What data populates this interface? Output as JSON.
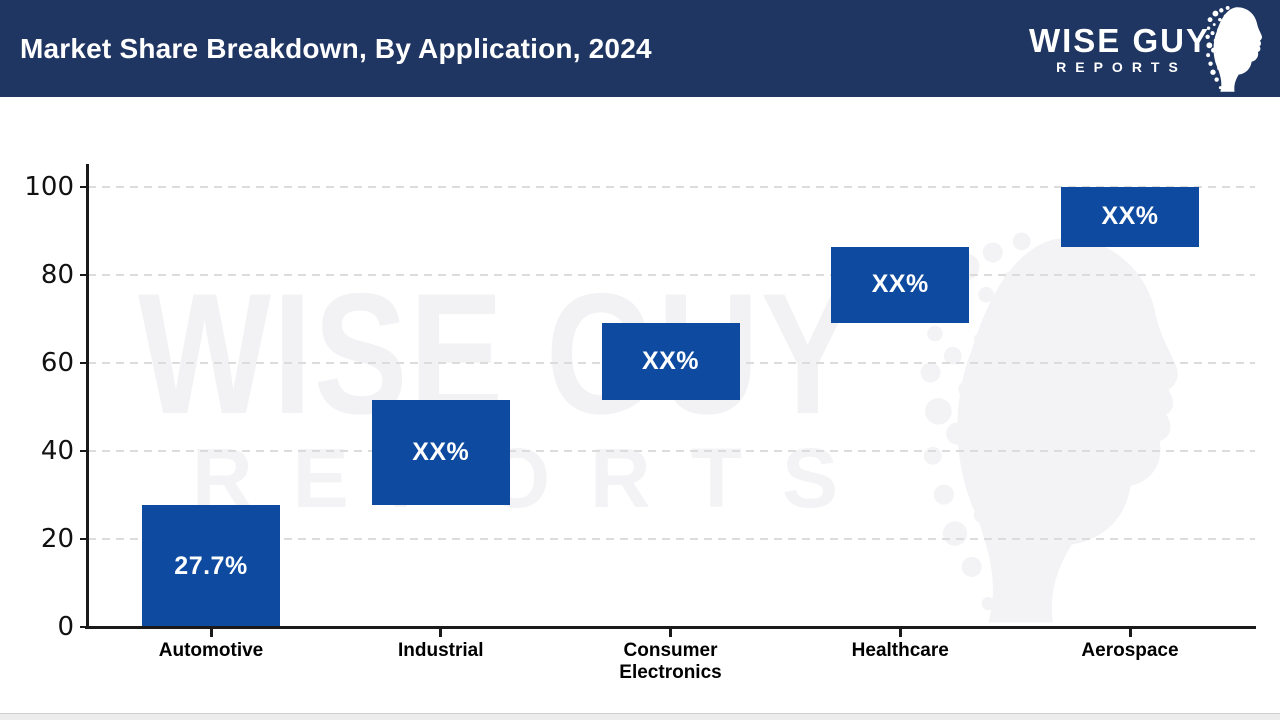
{
  "header": {
    "title": "Market Share Breakdown, By Application, 2024",
    "bg_color": "#1f3562",
    "logo": {
      "line1": "WISE GUY",
      "line2": "REPORTS"
    }
  },
  "watermark": {
    "line1": "WISE GUY",
    "line2": "REPORTS"
  },
  "chart_data": {
    "type": "bar",
    "subtype": "waterfall",
    "title": "Market Share Breakdown, By Application, 2024",
    "categories": [
      "Automotive",
      "Industrial",
      "Consumer Electronics",
      "Healthcare",
      "Aerospace"
    ],
    "segments": [
      {
        "category": "Automotive",
        "start": 0,
        "end": 27.7,
        "value": 27.7,
        "label": "27.7%"
      },
      {
        "category": "Industrial",
        "start": 27.7,
        "end": 51.5,
        "value": 23.8,
        "label": "XX%"
      },
      {
        "category": "Consumer Electronics",
        "start": 51.5,
        "end": 69.2,
        "value": 17.7,
        "label": "XX%"
      },
      {
        "category": "Healthcare",
        "start": 69.2,
        "end": 86.4,
        "value": 17.2,
        "label": "XX%"
      },
      {
        "category": "Aerospace",
        "start": 86.4,
        "end": 100,
        "value": 13.6,
        "label": "XX%"
      }
    ],
    "ylim": [
      0,
      100
    ],
    "yticks": [
      0,
      20,
      40,
      60,
      80,
      100
    ],
    "grid": "horizontal-dashed",
    "legend": "none",
    "bar_color": "#0d4aa0",
    "bar_label_color": "#ffffff",
    "axis_color": "#1a1a1a",
    "grid_color": "#dcdcdc"
  }
}
